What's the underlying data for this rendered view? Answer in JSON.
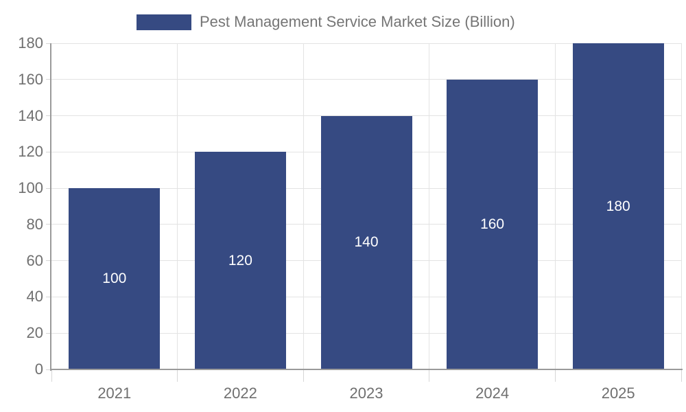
{
  "legend": {
    "label": "Pest Management Service Market Size (Billion)"
  },
  "chart_data": {
    "type": "bar",
    "title": "Pest Management Service Market Size (Billion)",
    "categories": [
      "2021",
      "2022",
      "2023",
      "2024",
      "2025"
    ],
    "values": [
      100,
      120,
      140,
      160,
      180
    ],
    "series": [
      {
        "name": "Pest Management Service Market Size (Billion)",
        "values": [
          100,
          120,
          140,
          160,
          180
        ]
      }
    ],
    "xlabel": "",
    "ylabel": "",
    "ylim": [
      0,
      180
    ],
    "yticks": [
      0,
      20,
      40,
      60,
      80,
      100,
      120,
      140,
      160,
      180
    ],
    "grid": true,
    "legend_position": "top",
    "value_labels_shown": true,
    "colors": {
      "bar": "#364a82",
      "value_label_text": "#ffffff",
      "axis_text": "#6f6f6f",
      "legend_text": "#757575",
      "grid_line": "#e3e3e3",
      "axis_line": "#9a9a9a",
      "tick_line": "#d6d6d6",
      "background": "#ffffff"
    }
  }
}
